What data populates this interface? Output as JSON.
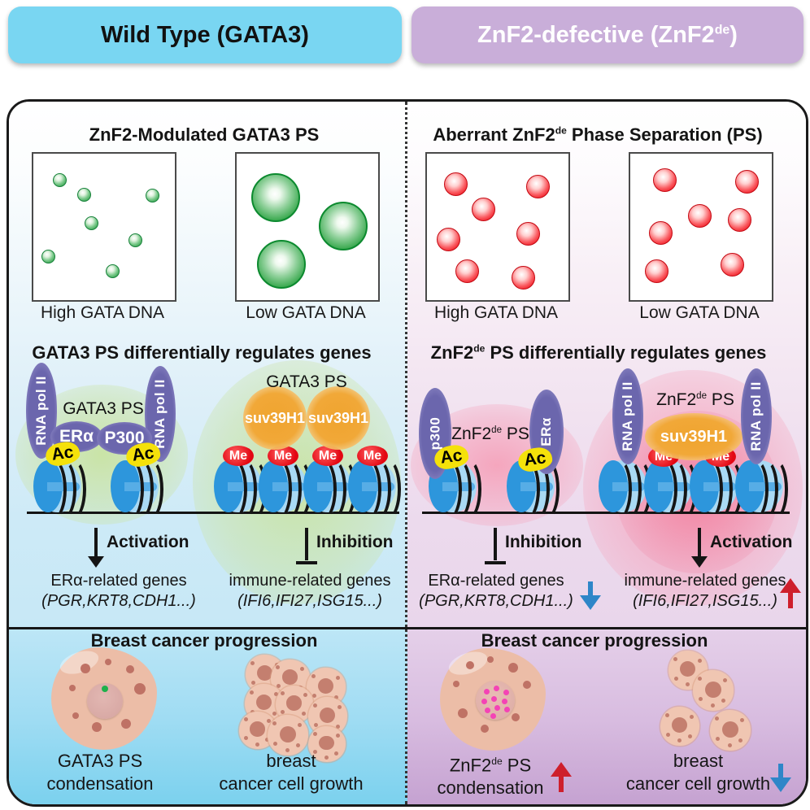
{
  "colors": {
    "wild_type_header_bg": "#79d6f2",
    "defective_header_bg": "#c9aed9",
    "gata3_droplet_green": "#2ea84c",
    "znf2de_droplet_red": "#ed1c24",
    "nucleosome_blue": "#2d96dc",
    "suv39h1_orange": "#f1a838",
    "ac_mark_yellow": "#f5e10a",
    "me_mark_red": "#e30613",
    "down_regulated_blue": "#2e86c8",
    "up_regulated_red": "#ce1f2c"
  },
  "headers": {
    "wild_type": "Wild Type (GATA3)",
    "defective_pre": "ZnF2-defective (ZnF2",
    "defective_sup": "de",
    "defective_post": ")"
  },
  "left": {
    "ps_section": {
      "title": "ZnF2-Modulated GATA3 PS",
      "high_box_label": "High GATA DNA",
      "low_box_label": "Low GATA DNA"
    },
    "regulation_section": {
      "title": "GATA3 PS differentially regulates genes",
      "active_complex": {
        "ps_label": "GATA3 PS",
        "rna_pol": "RNA pol II",
        "er_alpha": "ERα",
        "p300": "P300",
        "ac_mark": "Ac"
      },
      "repressive_complex": {
        "ps_label": "GATA3 PS",
        "suv39h1": "suv39H1",
        "me_mark": "Me"
      },
      "outcome_activation": {
        "label": "Activation",
        "genes": "ERα-related genes",
        "examples": "(PGR,KRT8,CDH1...)"
      },
      "outcome_inhibition": {
        "label": "Inhibition",
        "genes": "immune-related genes",
        "examples": "(IFI6,IFI27,ISG15...)"
      }
    },
    "progression_section": {
      "title": "Breast cancer progression",
      "condensation_line1": "GATA3 PS",
      "condensation_line2": "condensation",
      "growth_line1": "breast",
      "growth_line2": "cancer cell growth"
    }
  },
  "right": {
    "ps_section": {
      "title_pre": "Aberrant ZnF2",
      "title_sup": "de",
      "title_post": " Phase Separation (PS)",
      "high_box_label": "High GATA DNA",
      "low_box_label": "Low GATA DNA"
    },
    "regulation_section": {
      "title_pre": "ZnF2",
      "title_sup": "de",
      "title_post": " PS differentially regulates genes",
      "inactive_complex": {
        "p300": "p300",
        "ps_pre": "ZnF2",
        "ps_sup": "de",
        "ps_post": " PS",
        "er_alpha": "ERα",
        "ac_mark": "Ac"
      },
      "active_complex": {
        "rna_pol": "RNA pol II",
        "ps_pre": "ZnF2",
        "ps_sup": "de",
        "ps_post": " PS",
        "suv39h1": "suv39H1",
        "me_mark": "Me"
      },
      "outcome_inhibition": {
        "label": "Inhibition",
        "genes": "ERα-related genes",
        "examples": "(PGR,KRT8,CDH1...)"
      },
      "outcome_activation": {
        "label": "Activation",
        "genes": "immune-related genes",
        "examples": "(IFI6,IFI27,ISG15...)"
      }
    },
    "progression_section": {
      "title": "Breast cancer progression",
      "condensation_pre": "ZnF2",
      "condensation_sup": "de",
      "condensation_post": " PS",
      "condensation_line2": "condensation",
      "growth_line1": "breast",
      "growth_line2": "cancer cell growth"
    }
  }
}
